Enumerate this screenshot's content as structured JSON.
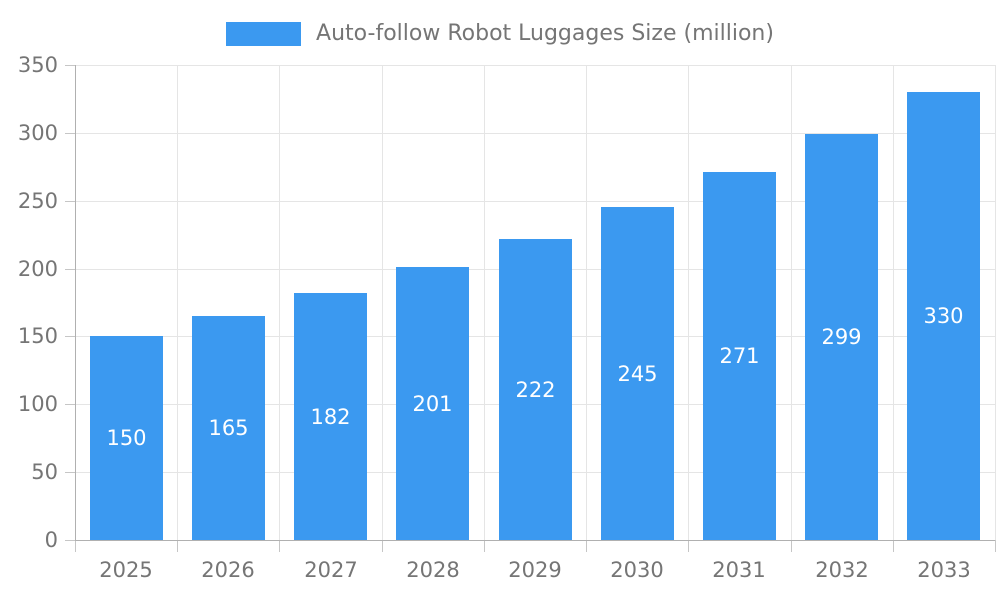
{
  "legend": {
    "label": "Auto-follow Robot Luggages Size (million)"
  },
  "colors": {
    "bar": "#3B99F0",
    "axis_label": "#757575",
    "legend_label": "#757575",
    "grid": "#E5E5E5",
    "axis_line": "#B0B0B0",
    "tick": "#C6C6C6",
    "value_label": "#FFFFFF",
    "background": "#FFFFFF"
  },
  "chart_data": {
    "type": "bar",
    "title": "Auto-follow Robot Luggages Size (million)",
    "categories": [
      "2025",
      "2026",
      "2027",
      "2028",
      "2029",
      "2030",
      "2031",
      "2032",
      "2033"
    ],
    "values": [
      150,
      165,
      182,
      201,
      222,
      245,
      271,
      299,
      330
    ],
    "xlabel": "",
    "ylabel": "",
    "ylim": [
      0,
      350
    ],
    "ytick_step": 50,
    "grid": true,
    "legend_position": "top",
    "value_label_position": "inside-center"
  }
}
